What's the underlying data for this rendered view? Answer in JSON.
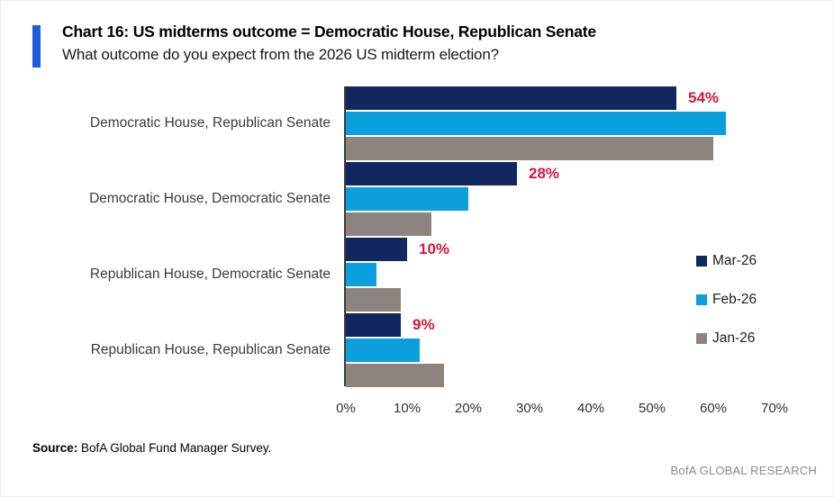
{
  "header": {
    "title": "Chart 16: US midterms outcome = Democratic House, Republican Senate",
    "subtitle": "What outcome do you expect from the 2026 US midterm election?",
    "accent_color": "#1c5fde"
  },
  "chart_data": {
    "type": "bar",
    "orientation": "horizontal",
    "title": "Chart 16: US midterms outcome = Democratic House, Republican Senate",
    "subtitle": "What outcome do you expect from the 2026 US midterm election?",
    "categories": [
      "Democratic House, Republican Senate",
      "Democratic House, Democratic Senate",
      "Republican House, Democratic Senate",
      "Republican House, Republican Senate"
    ],
    "series": [
      {
        "name": "Mar-26",
        "color": "#12275f",
        "values": [
          54,
          28,
          10,
          9
        ]
      },
      {
        "name": "Feb-26",
        "color": "#0c9fde",
        "values": [
          62,
          20,
          5,
          12
        ]
      },
      {
        "name": "Jan-26",
        "color": "#8d8480",
        "values": [
          60,
          14,
          9,
          16
        ]
      }
    ],
    "value_labels": [
      "54%",
      "28%",
      "10%",
      "9%"
    ],
    "value_label_color": "#d5173b",
    "x_ticks": [
      "0%",
      "10%",
      "20%",
      "30%",
      "40%",
      "50%",
      "60%",
      "70%"
    ],
    "xlim": [
      0,
      70
    ],
    "grid": false,
    "legend_position": "right",
    "axis_color": "#3d3d3d"
  },
  "footer": {
    "source_label": "Source:",
    "source_text": " BofA Global Fund Manager Survey.",
    "brand": "BofA GLOBAL RESEARCH"
  }
}
